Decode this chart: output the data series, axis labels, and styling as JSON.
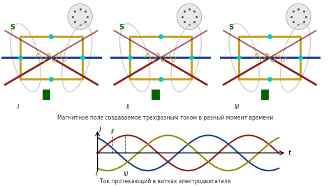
{
  "bg_color": "#ffffff",
  "top_caption": "Магнитное поле создаваемое трехфазным током в разный момент времени",
  "bottom_caption": "Ток протекающий в витках электродвигателя",
  "caption_fontsize": 5.5,
  "sine_colors": [
    "#8b1a1a",
    "#1a3a8b",
    "#8b8b00"
  ],
  "x_label": "t",
  "y_label": "I",
  "axis_label_fontsize": 7,
  "marker_label_fontsize": 6,
  "fig_width": 4.74,
  "fig_height": 2.66,
  "dpi": 100,
  "roman_labels": [
    "I",
    "II",
    "III"
  ]
}
